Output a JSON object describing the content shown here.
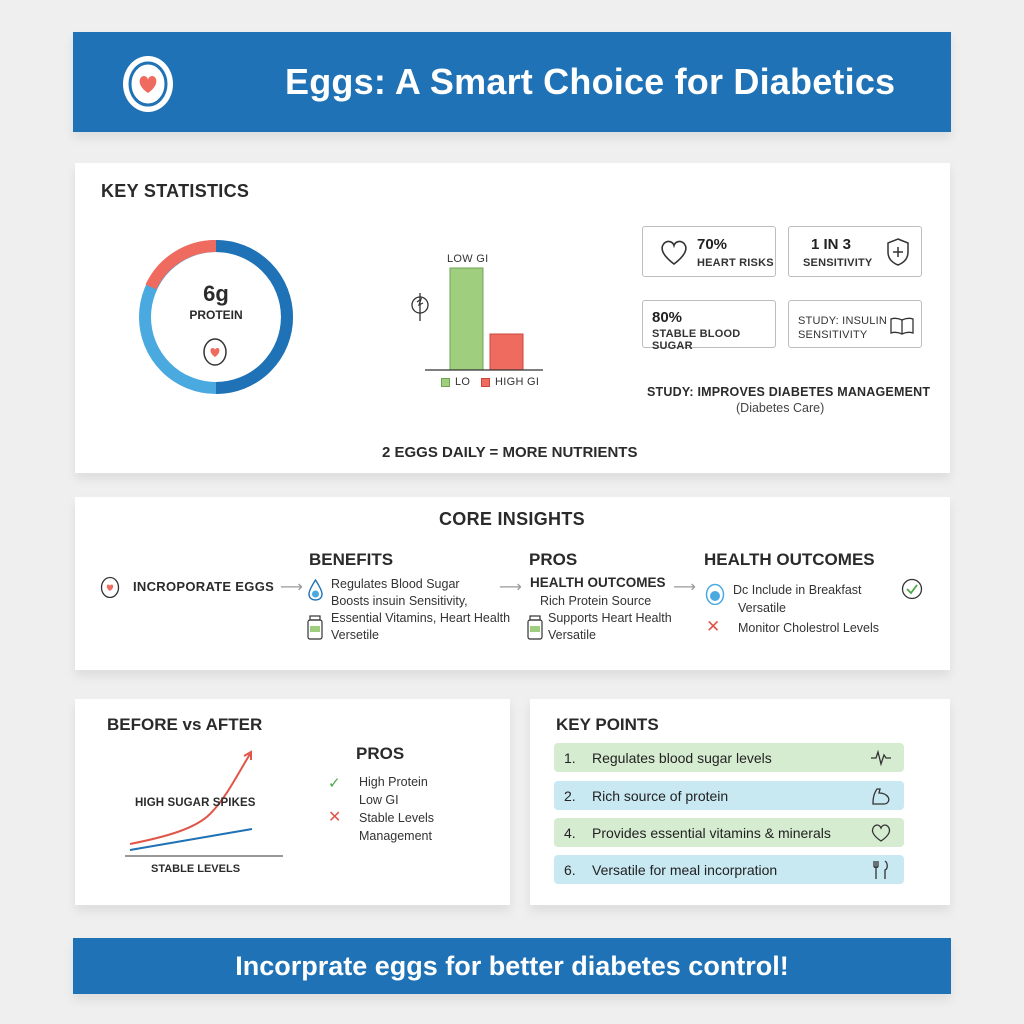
{
  "header": {
    "title": "Eggs: A Smart Choice for Diabetics"
  },
  "stats": {
    "heading": "KEY STATISTICS",
    "ring": {
      "value": "6g",
      "label": "PROTEIN"
    },
    "gi_chart": {
      "top_label": "LOW GI",
      "legend_low": "LO",
      "legend_high": "HIGH GI"
    },
    "boxes": [
      {
        "value": "70%",
        "label": "HEART RISKS"
      },
      {
        "value": "1 IN 3",
        "label": "SENSITIVITY"
      },
      {
        "value": "80%",
        "label": "STABLE BLOOD SUGAR"
      },
      {
        "value": "STUDY: INSULIN",
        "label": "SENSITIVITY"
      }
    ],
    "study_line": "STUDY: IMPROVES DIABETES MANAGEMENT",
    "study_source": "(Diabetes Care)",
    "footer": "2 EGGS DAILY = MORE NUTRIENTS"
  },
  "core": {
    "heading": "CORE INSIGHTS",
    "start": "INCROPORATE EGGS",
    "benefits": {
      "title": "BENEFITS",
      "lines": [
        "Regulates Blood Sugar",
        "Boosts insuin Sensitivity,",
        "Essential Vitamins, Heart Health",
        "Versetile"
      ]
    },
    "pros": {
      "title": "PROS",
      "subtitle": "HEALTH OUTCOMES",
      "lines": [
        "Rich Protein Source",
        "Supports Heart Health",
        "Versatile"
      ]
    },
    "outcomes": {
      "title": "HEALTH OUTCOMES",
      "lines": [
        "Dc Include in Breakfast",
        "Versatile",
        "Monitor Cholestrol Levels"
      ]
    }
  },
  "before_after": {
    "heading": "BEFORE vs AFTER",
    "spike_label": "HIGH SUGAR SPIKES",
    "stable_label": "STABLE LEVELS",
    "pros_title": "PROS",
    "pros_lines": [
      "High Protein",
      "Low GI",
      "Stable Levels",
      "Management"
    ]
  },
  "key_points": {
    "heading": "KEY POINTS",
    "items": [
      {
        "num": "1.",
        "text": "Regulates blood sugar levels",
        "icon": "pulse-icon"
      },
      {
        "num": "2.",
        "text": "Rich source of protein",
        "icon": "muscle-icon"
      },
      {
        "num": "4.",
        "text": "Provides essential vitamins & minerals",
        "icon": "heart-icon"
      },
      {
        "num": "6.",
        "text": "Versatile for meal incorpration",
        "icon": "fork-knife-icon"
      }
    ]
  },
  "footer_banner": {
    "text": "Incorprate eggs for better diabetes control!"
  },
  "colors": {
    "blue": "#1f72b5",
    "red": "#ef6b5f",
    "green": "#9fcf7e",
    "light_blue": "#4aa9df"
  }
}
